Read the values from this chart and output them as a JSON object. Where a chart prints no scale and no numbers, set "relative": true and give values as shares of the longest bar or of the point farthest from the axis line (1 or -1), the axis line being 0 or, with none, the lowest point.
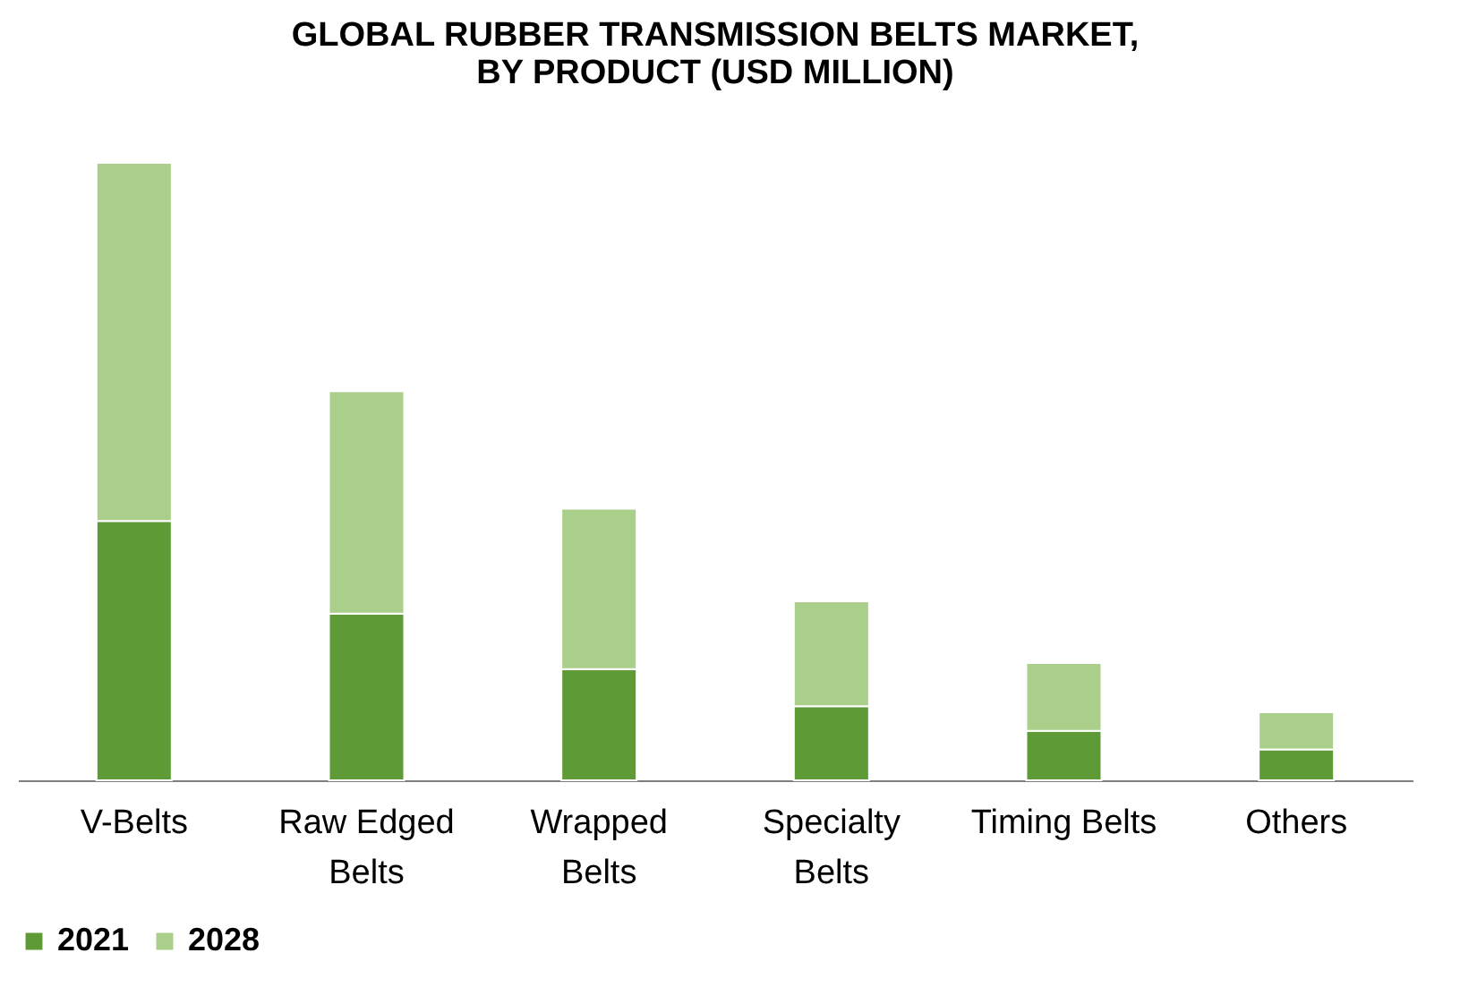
{
  "chart_data": {
    "type": "bar",
    "title": "GLOBAL RUBBER TRANSMISSION BELTS  MARKET,\nBY PRODUCT (USD MILLION)",
    "stacked": true,
    "relative": true,
    "legend": "bottom",
    "categories": [
      "V-Belts",
      "Raw Edged Belts",
      "Wrapped Belts",
      "Specialty Belts",
      "Timing Belts",
      "Others"
    ],
    "series": [
      {
        "name": "2021",
        "color": "#5e9a36",
        "values": [
          0.42,
          0.27,
          0.18,
          0.12,
          0.08,
          0.05
        ]
      },
      {
        "name": "2028",
        "color": "#a9cf8a",
        "values": [
          0.58,
          0.36,
          0.26,
          0.17,
          0.11,
          0.06
        ]
      }
    ]
  }
}
